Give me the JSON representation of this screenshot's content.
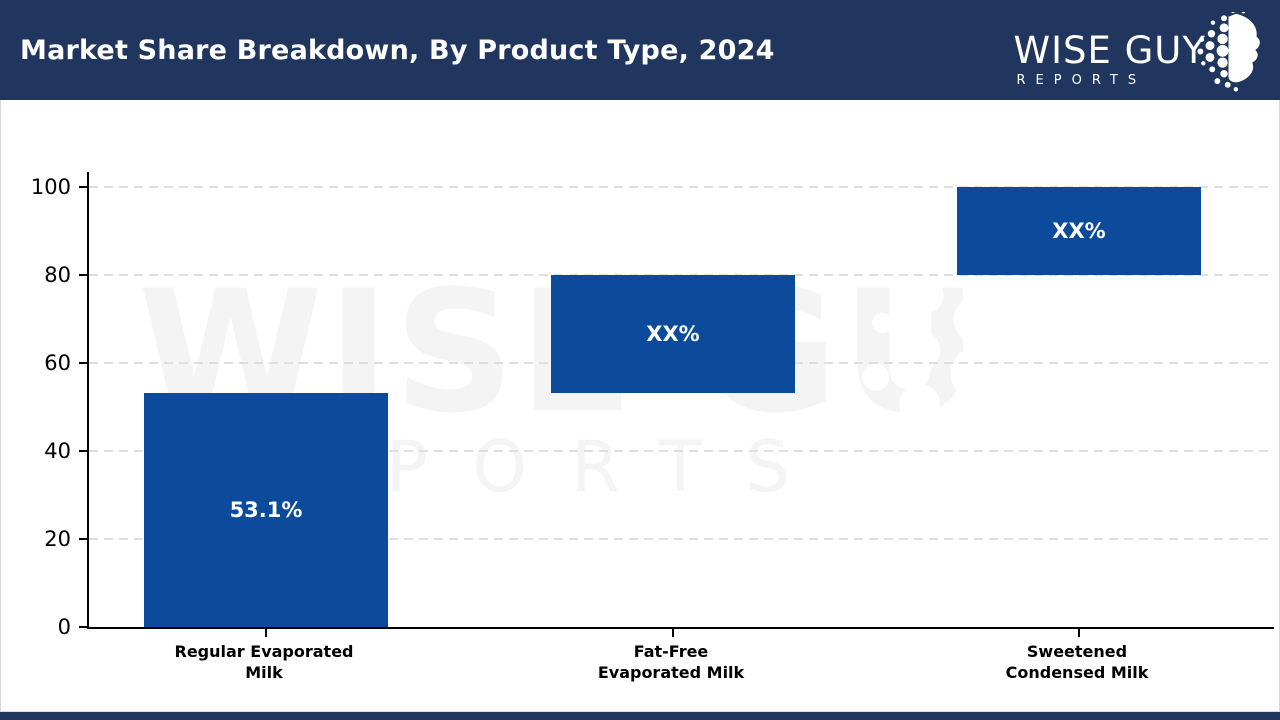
{
  "header": {
    "title": "Market Share Breakdown, By Product Type, 2024",
    "logo": {
      "line1": "WISE GUY",
      "line2": "REPORTS"
    }
  },
  "watermark": {
    "line1": "WISE GU",
    "line2": "REPORTS"
  },
  "colors": {
    "header_bg": "#20365f",
    "bar": "#0c4a9c",
    "grid": "#dedede",
    "axis": "#000000",
    "bar_label": "#ffffff",
    "watermark": "#f4f4f4"
  },
  "chart_data": {
    "type": "bar",
    "subtype": "waterfall",
    "title": "Market Share Breakdown, By Product Type, 2024",
    "categories": [
      {
        "line1": "Regular Evaporated",
        "line2": "Milk"
      },
      {
        "line1": "Fat-Free",
        "line2": "Evaporated Milk"
      },
      {
        "line1": "Sweetened",
        "line2": "Condensed Milk"
      }
    ],
    "segments": [
      {
        "category": "Regular Evaporated Milk",
        "start": 0,
        "end": 53.1,
        "label": "53.1%"
      },
      {
        "category": "Fat-Free Evaporated Milk",
        "start": 53.1,
        "end": 79.9,
        "label": "XX%"
      },
      {
        "category": "Sweetened Condensed Milk",
        "start": 79.9,
        "end": 100,
        "label": "XX%"
      }
    ],
    "yticks": [
      0,
      20,
      40,
      60,
      80,
      100
    ],
    "ylim": [
      0,
      103.4
    ],
    "xlabel": "",
    "ylabel": "",
    "grid": "horizontal-dashed",
    "legend": "none"
  }
}
